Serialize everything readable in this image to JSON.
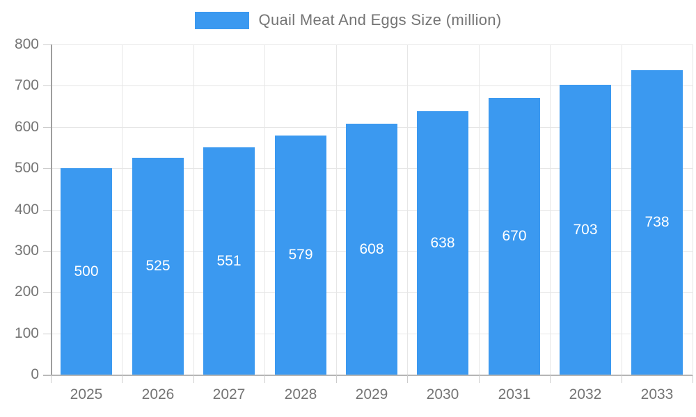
{
  "chart_data": {
    "type": "bar",
    "title": "Quail Meat And Eggs Size (million)",
    "legend": [
      {
        "label": "Quail Meat And Eggs Size (million)",
        "color": "#3b99f0"
      }
    ],
    "legend_position": "top-center",
    "categories": [
      "2025",
      "2026",
      "2027",
      "2028",
      "2029",
      "2030",
      "2031",
      "2032",
      "2033"
    ],
    "series": [
      {
        "name": "Quail Meat And Eggs Size (million)",
        "values": [
          500,
          525,
          551,
          579,
          608,
          638,
          670,
          703,
          738
        ]
      }
    ],
    "value_labels": {
      "visible": true,
      "position": "inside-center",
      "color": "#ffffff"
    },
    "xlabel": "",
    "ylabel": "",
    "ylim": [
      0,
      800
    ],
    "y_tick_step": 100,
    "y_tick_labels": [
      "0",
      "100",
      "200",
      "300",
      "400",
      "500",
      "600",
      "700",
      "800"
    ],
    "grid": true,
    "colors": {
      "bar": "#3b99f0",
      "gridline": "#e6e6e6",
      "axis_line": "#9e9e9e",
      "tick": "#cccccc",
      "axis_text": "#757575",
      "background": "#ffffff"
    }
  }
}
